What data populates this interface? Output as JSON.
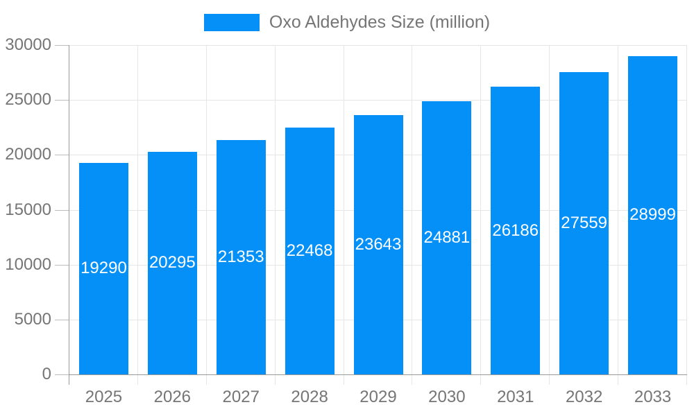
{
  "chart_data": {
    "type": "bar",
    "title": "Oxo Aldehydes Size (million)",
    "legend_position": "top",
    "categories": [
      "2025",
      "2026",
      "2027",
      "2028",
      "2029",
      "2030",
      "2031",
      "2032",
      "2033"
    ],
    "series": [
      {
        "name": "Oxo Aldehydes Size (million)",
        "values": [
          19290,
          20295,
          21353,
          22468,
          23643,
          24881,
          26186,
          27559,
          28999
        ]
      }
    ],
    "bar_labels": [
      "19290",
      "20295",
      "21353",
      "22468",
      "23643",
      "24881",
      "26186",
      "27559",
      "28999"
    ],
    "xlabel": "",
    "ylabel": "",
    "ylim": [
      0,
      30000
    ],
    "yticks": [
      0,
      5000,
      10000,
      15000,
      20000,
      25000,
      30000
    ],
    "grid": true,
    "colors": {
      "bar": "#0590f8",
      "grid": "#e6e6e6",
      "axis": "#999999",
      "tick": "#bbbbbb",
      "text": "#757575",
      "bar_label": "#ffffff",
      "background": "#ffffff"
    }
  }
}
